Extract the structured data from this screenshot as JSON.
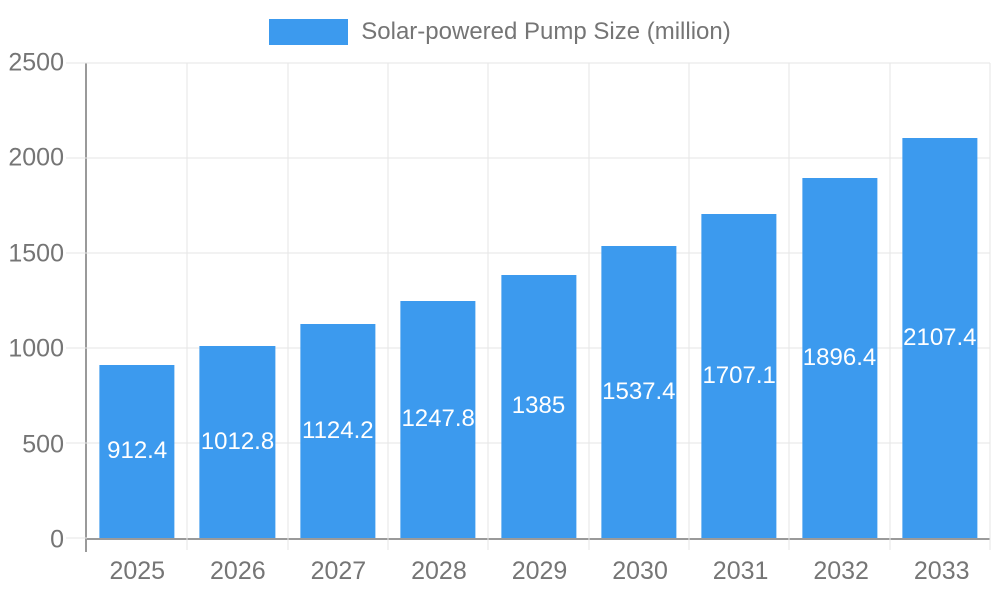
{
  "colors": {
    "bar": "#3c9aee",
    "grid": "#e6e6e6",
    "axis": "#9a9a9a",
    "text": "#757575",
    "label": "#ffffff",
    "bg": "#ffffff"
  },
  "legend": {
    "items": [
      {
        "label": "Solar-powered Pump Size (million)",
        "swatch_color": "#3c9aee"
      }
    ]
  },
  "chart_data": {
    "type": "bar",
    "title": "Solar-powered Pump Size (million)",
    "categories": [
      "2025",
      "2026",
      "2027",
      "2028",
      "2029",
      "2030",
      "2031",
      "2032",
      "2033"
    ],
    "values": [
      912.4,
      1012.8,
      1124.2,
      1247.8,
      1385,
      1537.4,
      1707.1,
      1896.4,
      2107.4
    ],
    "xlabel": "",
    "ylabel": "",
    "ylim": [
      0,
      2500
    ],
    "y_ticks": [
      0,
      500,
      1000,
      1500,
      2000,
      2500
    ],
    "grid": true,
    "legend_position": "top-center",
    "data_labels": "inside-middle",
    "bar_width_fraction": 0.75
  }
}
